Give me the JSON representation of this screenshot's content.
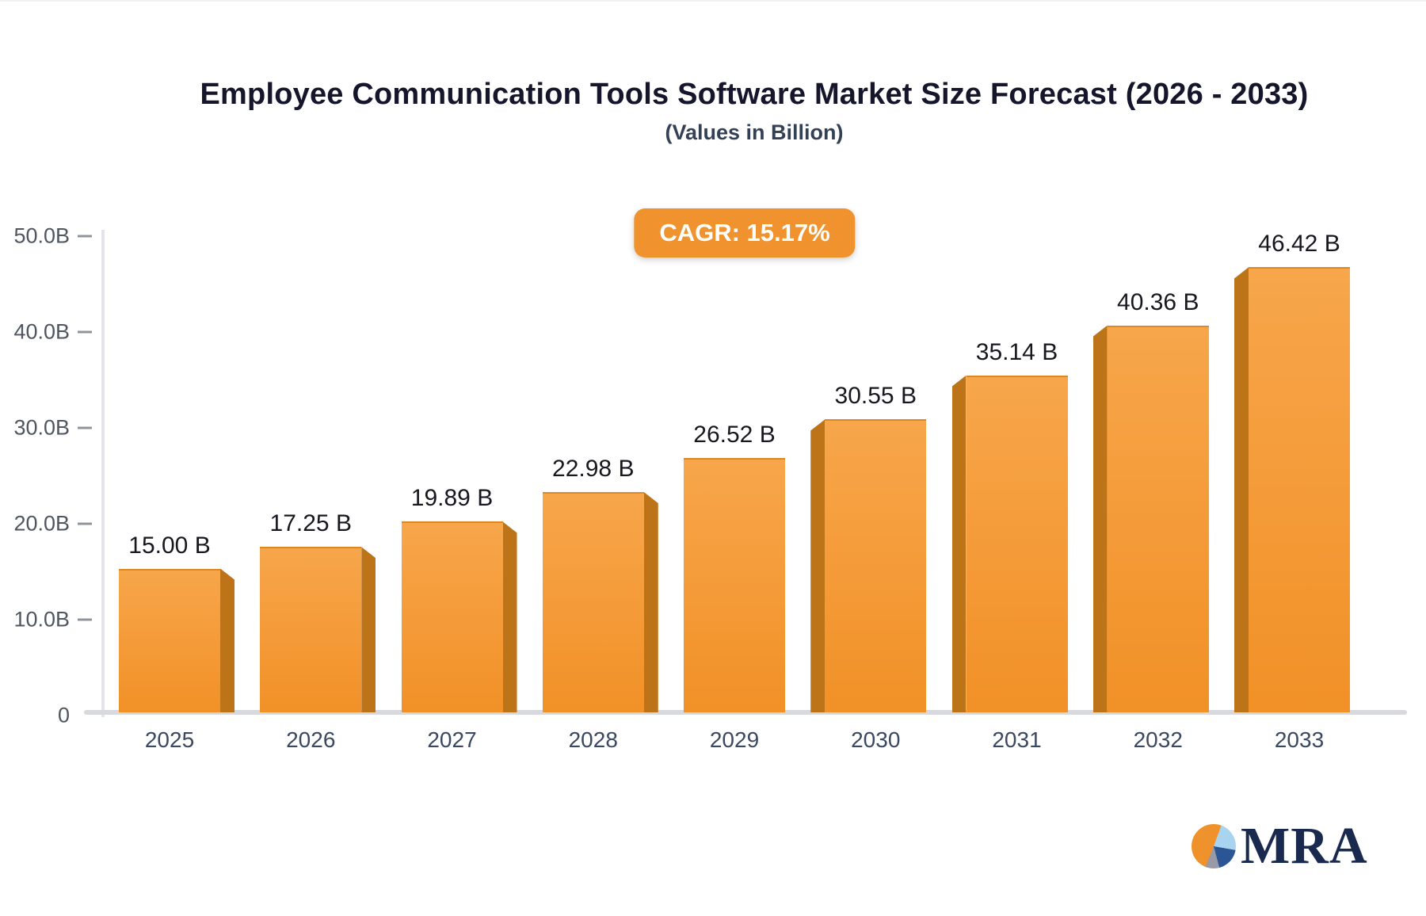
{
  "header": {
    "title": "Employee Communication Tools Software Market Size Forecast (2026 - 2033)",
    "subtitle": "(Values in Billion)"
  },
  "badge": {
    "label": "CAGR: 15.17%",
    "bg": "#F0932E",
    "text_color": "#FFFFFF"
  },
  "chart_data": {
    "type": "bar",
    "title": "Employee Communication Tools Software Market Size Forecast (2026 - 2033)",
    "subtitle": "(Values in Billion)",
    "cagr": "15.17%",
    "categories": [
      "2025",
      "2026",
      "2027",
      "2028",
      "2029",
      "2030",
      "2031",
      "2032",
      "2033"
    ],
    "values": [
      15.0,
      17.25,
      19.89,
      22.98,
      26.52,
      30.55,
      35.14,
      40.36,
      46.42
    ],
    "bar_labels": [
      "15.00 B",
      "17.25 B",
      "19.89 B",
      "22.98 B",
      "26.52 B",
      "30.55 B",
      "35.14 B",
      "40.36 B",
      "46.42 B"
    ],
    "xlabel": "",
    "ylabel": "",
    "ylim": [
      0,
      50
    ],
    "grid": false,
    "legend": "none",
    "y_ticks": [
      {
        "label": "50.0B",
        "value": 50
      },
      {
        "label": "40.0B",
        "value": 40
      },
      {
        "label": "30.0B",
        "value": 30
      },
      {
        "label": "20.0B",
        "value": 20
      },
      {
        "label": "10.0B",
        "value": 10
      },
      {
        "label": "0",
        "value": 0
      }
    ],
    "colors": {
      "bar_face_top": "#F7A64B",
      "bar_face_bottom": "#F19127",
      "bar_side": "#BD7318",
      "axis_line": "#E4E4EA",
      "baseline": "#D8D8DF",
      "value_label": "#17171F",
      "year_label": "#3A4860"
    }
  },
  "logo": {
    "text": "MRA",
    "text_color": "#1A2A4F",
    "pie_colors": {
      "light_blue": "#A8D4F0",
      "dark_blue": "#2B5594",
      "gray": "#9A9AA5",
      "orange": "#F0922B"
    }
  }
}
